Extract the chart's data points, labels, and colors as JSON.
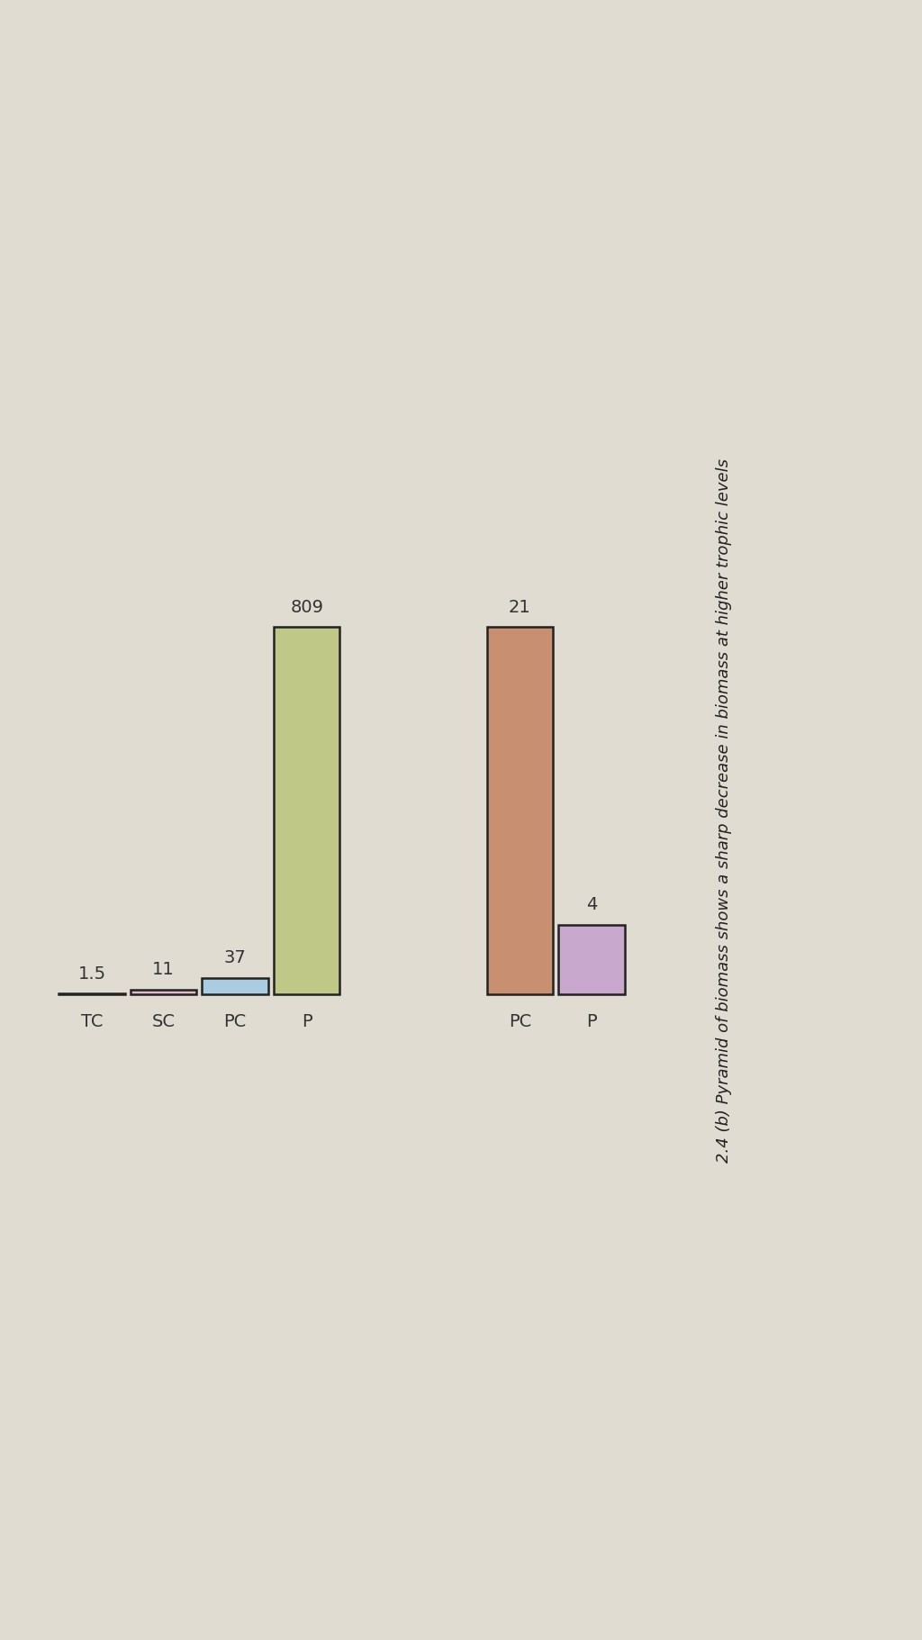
{
  "title": "2.4 (b) Pyramid of biomass shows a sharp decrease in biomass at higher trophic levels",
  "background_color": "#d8d4cc",
  "page_bg": "#e0dcd2",
  "left_pyramid": {
    "labels": [
      "TC",
      "SC",
      "PC",
      "P"
    ],
    "values": [
      1.5,
      11,
      37,
      809
    ],
    "colors": [
      "#f0c896",
      "#e0b8c8",
      "#aacce0",
      "#c0c888"
    ],
    "bar_width": 1.0
  },
  "right_pyramid": {
    "labels": [
      "PC",
      "P"
    ],
    "values": [
      21,
      4
    ],
    "colors": [
      "#c89070",
      "#c8a8cc"
    ],
    "bar_width": 1.0
  },
  "rotation_deg": -90,
  "fig_width": 10.24,
  "fig_height": 18.21
}
